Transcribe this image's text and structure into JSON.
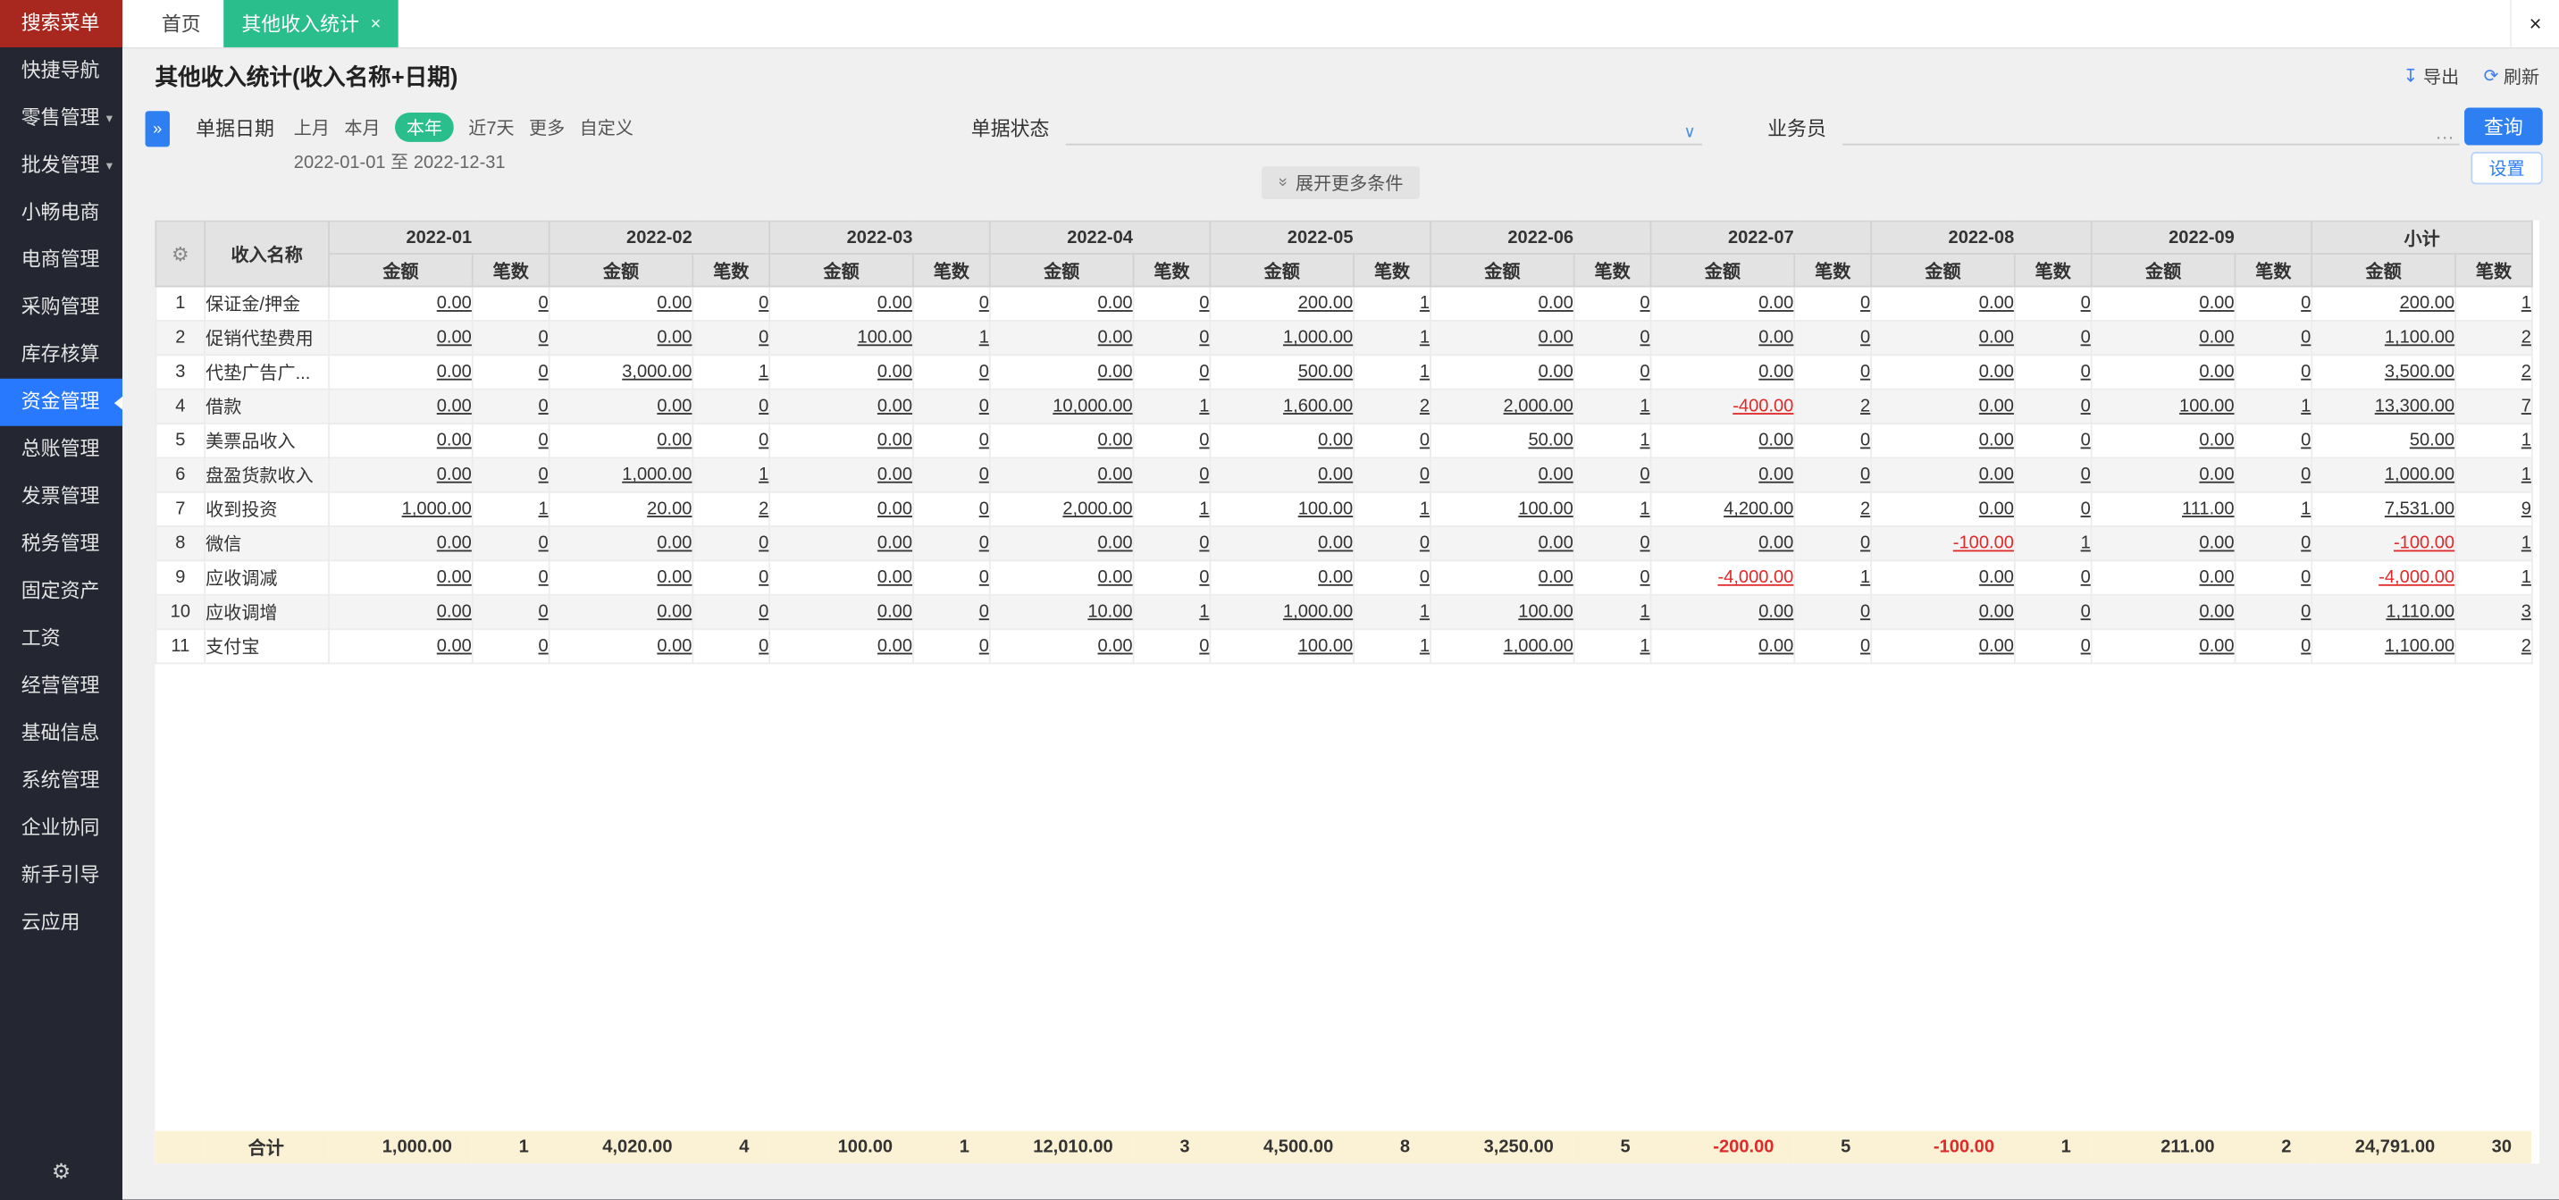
{
  "icons": {
    "gear": "⚙",
    "double_arrow": "»",
    "chevron_down": "▾",
    "close": "×",
    "tab_close": "×",
    "ellipsis": "…",
    "select_chevron": "∨",
    "refresh": "⟳",
    "export": "↧"
  },
  "colors": {
    "accent_blue": "#2e7ff2",
    "accent_green": "#2bbe8d",
    "sidebar_active": "#2979ff",
    "sidebar_search_red": "#a8271e",
    "negative_red": "#e02a2a",
    "footer_bg": "#fbf2d5"
  },
  "sidebar": {
    "search_label": "搜索菜单",
    "items": [
      {
        "label": "快捷导航",
        "caret": false,
        "active": false
      },
      {
        "label": "零售管理",
        "caret": true,
        "active": false
      },
      {
        "label": "批发管理",
        "caret": true,
        "active": false
      },
      {
        "label": "小畅电商",
        "caret": false,
        "active": false
      },
      {
        "label": "电商管理",
        "caret": false,
        "active": false
      },
      {
        "label": "采购管理",
        "caret": false,
        "active": false
      },
      {
        "label": "库存核算",
        "caret": false,
        "active": false
      },
      {
        "label": "资金管理",
        "caret": false,
        "active": true
      },
      {
        "label": "总账管理",
        "caret": false,
        "active": false
      },
      {
        "label": "发票管理",
        "caret": false,
        "active": false
      },
      {
        "label": "税务管理",
        "caret": false,
        "active": false
      },
      {
        "label": "固定资产",
        "caret": false,
        "active": false
      },
      {
        "label": "工资",
        "caret": false,
        "active": false
      },
      {
        "label": "经营管理",
        "caret": false,
        "active": false
      },
      {
        "label": "基础信息",
        "caret": false,
        "active": false
      },
      {
        "label": "系统管理",
        "caret": false,
        "active": false
      },
      {
        "label": "企业协同",
        "caret": false,
        "active": false
      },
      {
        "label": "新手引导",
        "caret": false,
        "active": false
      },
      {
        "label": "云应用",
        "caret": false,
        "active": false
      }
    ]
  },
  "tabs": {
    "home": "首页",
    "active": "其他收入统计"
  },
  "header": {
    "title": "其他收入统计(收入名称+日期)",
    "export_label": "导出",
    "refresh_label": "刷新"
  },
  "filters": {
    "date_label": "单据日期",
    "date_options": [
      "上月",
      "本月",
      "本年",
      "近7天",
      "更多",
      "自定义"
    ],
    "date_selected": "本年",
    "date_range": "2022-01-01 至 2022-12-31",
    "status_label": "单据状态",
    "salesman_label": "业务员",
    "query_label": "查询",
    "settings_label": "设置",
    "expand_label": "展开更多条件"
  },
  "table": {
    "name_header": "收入名称",
    "months": [
      "2022-01",
      "2022-02",
      "2022-03",
      "2022-04",
      "2022-05",
      "2022-06",
      "2022-07",
      "2022-08",
      "2022-09"
    ],
    "subtotal_header": "小计",
    "amount_header": "金额",
    "count_header": "笔数",
    "rows": [
      {
        "name": "保证金/押金",
        "cells": [
          [
            "0.00",
            "0"
          ],
          [
            "0.00",
            "0"
          ],
          [
            "0.00",
            "0"
          ],
          [
            "0.00",
            "0"
          ],
          [
            "200.00",
            "1"
          ],
          [
            "0.00",
            "0"
          ],
          [
            "0.00",
            "0"
          ],
          [
            "0.00",
            "0"
          ],
          [
            "0.00",
            "0"
          ]
        ],
        "subtotal": [
          "200.00",
          "1"
        ]
      },
      {
        "name": "促销代垫费用",
        "cells": [
          [
            "0.00",
            "0"
          ],
          [
            "0.00",
            "0"
          ],
          [
            "100.00",
            "1"
          ],
          [
            "0.00",
            "0"
          ],
          [
            "1,000.00",
            "1"
          ],
          [
            "0.00",
            "0"
          ],
          [
            "0.00",
            "0"
          ],
          [
            "0.00",
            "0"
          ],
          [
            "0.00",
            "0"
          ]
        ],
        "subtotal": [
          "1,100.00",
          "2"
        ]
      },
      {
        "name": "代垫广告广...",
        "cells": [
          [
            "0.00",
            "0"
          ],
          [
            "3,000.00",
            "1"
          ],
          [
            "0.00",
            "0"
          ],
          [
            "0.00",
            "0"
          ],
          [
            "500.00",
            "1"
          ],
          [
            "0.00",
            "0"
          ],
          [
            "0.00",
            "0"
          ],
          [
            "0.00",
            "0"
          ],
          [
            "0.00",
            "0"
          ]
        ],
        "subtotal": [
          "3,500.00",
          "2"
        ]
      },
      {
        "name": "借款",
        "cells": [
          [
            "0.00",
            "0"
          ],
          [
            "0.00",
            "0"
          ],
          [
            "0.00",
            "0"
          ],
          [
            "10,000.00",
            "1"
          ],
          [
            "1,600.00",
            "2"
          ],
          [
            "2,000.00",
            "1"
          ],
          [
            "-400.00",
            "2"
          ],
          [
            "0.00",
            "0"
          ],
          [
            "100.00",
            "1"
          ]
        ],
        "subtotal": [
          "13,300.00",
          "7"
        ]
      },
      {
        "name": "美票品收入",
        "cells": [
          [
            "0.00",
            "0"
          ],
          [
            "0.00",
            "0"
          ],
          [
            "0.00",
            "0"
          ],
          [
            "0.00",
            "0"
          ],
          [
            "0.00",
            "0"
          ],
          [
            "50.00",
            "1"
          ],
          [
            "0.00",
            "0"
          ],
          [
            "0.00",
            "0"
          ],
          [
            "0.00",
            "0"
          ]
        ],
        "subtotal": [
          "50.00",
          "1"
        ]
      },
      {
        "name": "盘盈货款收入",
        "cells": [
          [
            "0.00",
            "0"
          ],
          [
            "1,000.00",
            "1"
          ],
          [
            "0.00",
            "0"
          ],
          [
            "0.00",
            "0"
          ],
          [
            "0.00",
            "0"
          ],
          [
            "0.00",
            "0"
          ],
          [
            "0.00",
            "0"
          ],
          [
            "0.00",
            "0"
          ],
          [
            "0.00",
            "0"
          ]
        ],
        "subtotal": [
          "1,000.00",
          "1"
        ]
      },
      {
        "name": "收到投资",
        "cells": [
          [
            "1,000.00",
            "1"
          ],
          [
            "20.00",
            "2"
          ],
          [
            "0.00",
            "0"
          ],
          [
            "2,000.00",
            "1"
          ],
          [
            "100.00",
            "1"
          ],
          [
            "100.00",
            "1"
          ],
          [
            "4,200.00",
            "2"
          ],
          [
            "0.00",
            "0"
          ],
          [
            "111.00",
            "1"
          ]
        ],
        "subtotal": [
          "7,531.00",
          "9"
        ]
      },
      {
        "name": "微信",
        "cells": [
          [
            "0.00",
            "0"
          ],
          [
            "0.00",
            "0"
          ],
          [
            "0.00",
            "0"
          ],
          [
            "0.00",
            "0"
          ],
          [
            "0.00",
            "0"
          ],
          [
            "0.00",
            "0"
          ],
          [
            "0.00",
            "0"
          ],
          [
            "-100.00",
            "1"
          ],
          [
            "0.00",
            "0"
          ]
        ],
        "subtotal": [
          "-100.00",
          "1"
        ]
      },
      {
        "name": "应收调减",
        "cells": [
          [
            "0.00",
            "0"
          ],
          [
            "0.00",
            "0"
          ],
          [
            "0.00",
            "0"
          ],
          [
            "0.00",
            "0"
          ],
          [
            "0.00",
            "0"
          ],
          [
            "0.00",
            "0"
          ],
          [
            "-4,000.00",
            "1"
          ],
          [
            "0.00",
            "0"
          ],
          [
            "0.00",
            "0"
          ]
        ],
        "subtotal": [
          "-4,000.00",
          "1"
        ]
      },
      {
        "name": "应收调增",
        "cells": [
          [
            "0.00",
            "0"
          ],
          [
            "0.00",
            "0"
          ],
          [
            "0.00",
            "0"
          ],
          [
            "10.00",
            "1"
          ],
          [
            "1,000.00",
            "1"
          ],
          [
            "100.00",
            "1"
          ],
          [
            "0.00",
            "0"
          ],
          [
            "0.00",
            "0"
          ],
          [
            "0.00",
            "0"
          ]
        ],
        "subtotal": [
          "1,110.00",
          "3"
        ]
      },
      {
        "name": "支付宝",
        "cells": [
          [
            "0.00",
            "0"
          ],
          [
            "0.00",
            "0"
          ],
          [
            "0.00",
            "0"
          ],
          [
            "0.00",
            "0"
          ],
          [
            "100.00",
            "1"
          ],
          [
            "1,000.00",
            "1"
          ],
          [
            "0.00",
            "0"
          ],
          [
            "0.00",
            "0"
          ],
          [
            "0.00",
            "0"
          ]
        ],
        "subtotal": [
          "1,100.00",
          "2"
        ]
      }
    ],
    "total_label": "合计",
    "total_cells": [
      [
        "1,000.00",
        "1"
      ],
      [
        "4,020.00",
        "4"
      ],
      [
        "100.00",
        "1"
      ],
      [
        "12,010.00",
        "3"
      ],
      [
        "4,500.00",
        "8"
      ],
      [
        "3,250.00",
        "5"
      ],
      [
        "-200.00",
        "5"
      ],
      [
        "-100.00",
        "1"
      ],
      [
        "211.00",
        "2"
      ]
    ],
    "total_subtotal": [
      "24,791.00",
      "30"
    ]
  }
}
